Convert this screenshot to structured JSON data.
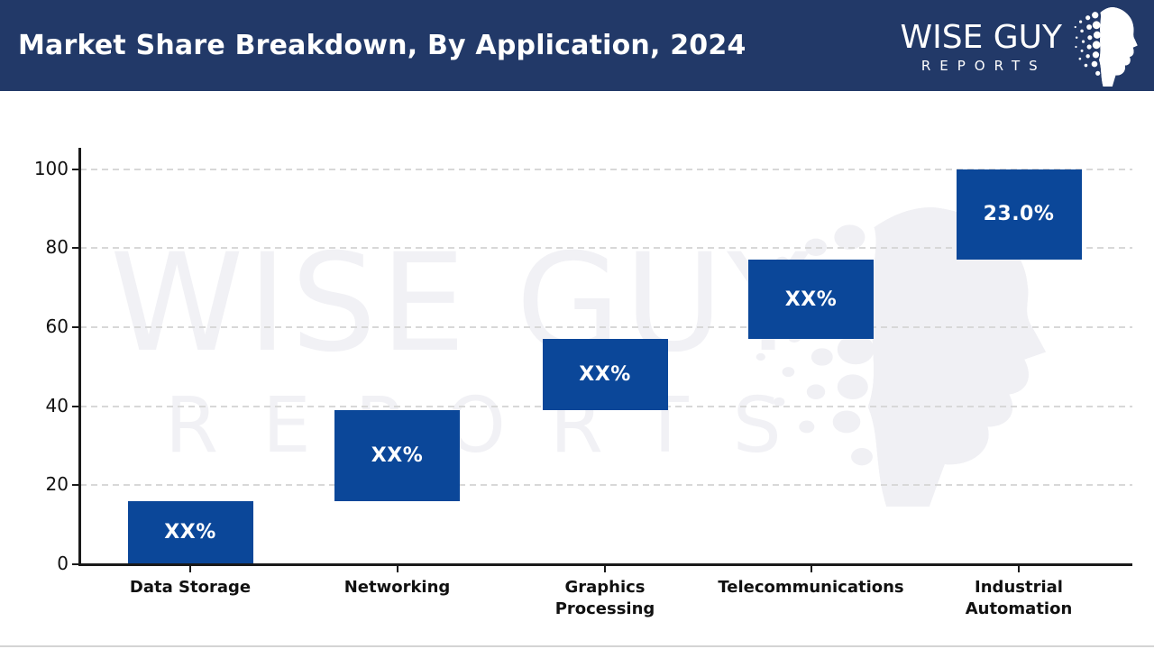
{
  "header": {
    "title": "Market Share Breakdown, By Application, 2024",
    "logo_line1": "WISE GUY",
    "logo_line2": "REPORTS"
  },
  "watermark": {
    "line1": "WISE GUY",
    "line2": "REPORTS"
  },
  "chart_data": {
    "type": "bar",
    "subtype": "waterfall-floating-bars",
    "title": "Market Share Breakdown, By Application, 2024",
    "categories": [
      "Data Storage",
      "Networking",
      "Graphics Processing",
      "Telecommunications",
      "Industrial Automation"
    ],
    "x_tick_lines": [
      [
        "Data Storage"
      ],
      [
        "Networking"
      ],
      [
        "Graphics",
        "Processing"
      ],
      [
        "Telecommunications"
      ],
      [
        "Industrial",
        "Automation"
      ]
    ],
    "segments": [
      {
        "category": "Data Storage",
        "start": 0,
        "end": 16,
        "value": 16,
        "label": "XX%"
      },
      {
        "category": "Networking",
        "start": 16,
        "end": 39,
        "value": 23,
        "label": "XX%"
      },
      {
        "category": "Graphics Processing",
        "start": 39,
        "end": 57,
        "value": 18,
        "label": "XX%"
      },
      {
        "category": "Telecommunications",
        "start": 57,
        "end": 77,
        "value": 20,
        "label": "XX%"
      },
      {
        "category": "Industrial Automation",
        "start": 77,
        "end": 100,
        "value": 23,
        "label": "23.0%"
      }
    ],
    "y_ticks": [
      0,
      20,
      40,
      60,
      80,
      100
    ],
    "ylim": [
      0,
      100
    ],
    "xlabel": "",
    "ylabel": "",
    "legend": "none",
    "grid": "horizontal-dashed",
    "bar_color": "#0b4799",
    "bar_label_color": "#ffffff"
  },
  "colors": {
    "header_bg": "#223968",
    "grid": "#d8d8d8",
    "axis": "#1a1a1a",
    "watermark": "#f1f1f5",
    "page_bg": "#ffffff"
  }
}
